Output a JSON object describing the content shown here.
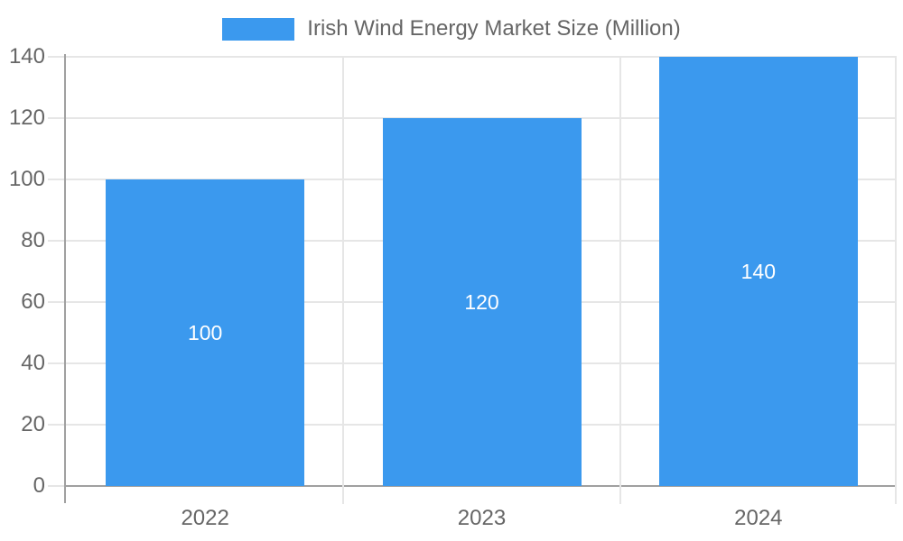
{
  "chart_data": {
    "type": "bar",
    "title": "Irish Wind Energy Market Size (Million)",
    "categories": [
      "2022",
      "2023",
      "2024"
    ],
    "values": [
      100,
      120,
      140
    ],
    "value_labels": [
      "100",
      "120",
      "140"
    ],
    "xlabel": "",
    "ylabel": "",
    "ylim": [
      0,
      140
    ],
    "yticks": [
      0,
      20,
      40,
      60,
      80,
      100,
      120,
      140
    ],
    "ytick_labels": [
      "0",
      "20",
      "40",
      "60",
      "80",
      "100",
      "120",
      "140"
    ],
    "grid": true,
    "legend_position": "top",
    "legend_entries": [
      "Irish Wind Energy Market Size (Million)"
    ]
  },
  "colors": {
    "bar": "#3B99EE",
    "gridline": "#e6e6e6",
    "axis": "#a0a0a0",
    "tick_text": "#666666",
    "legend_text": "#666666",
    "value_text": "#ffffff",
    "background": "#ffffff"
  }
}
